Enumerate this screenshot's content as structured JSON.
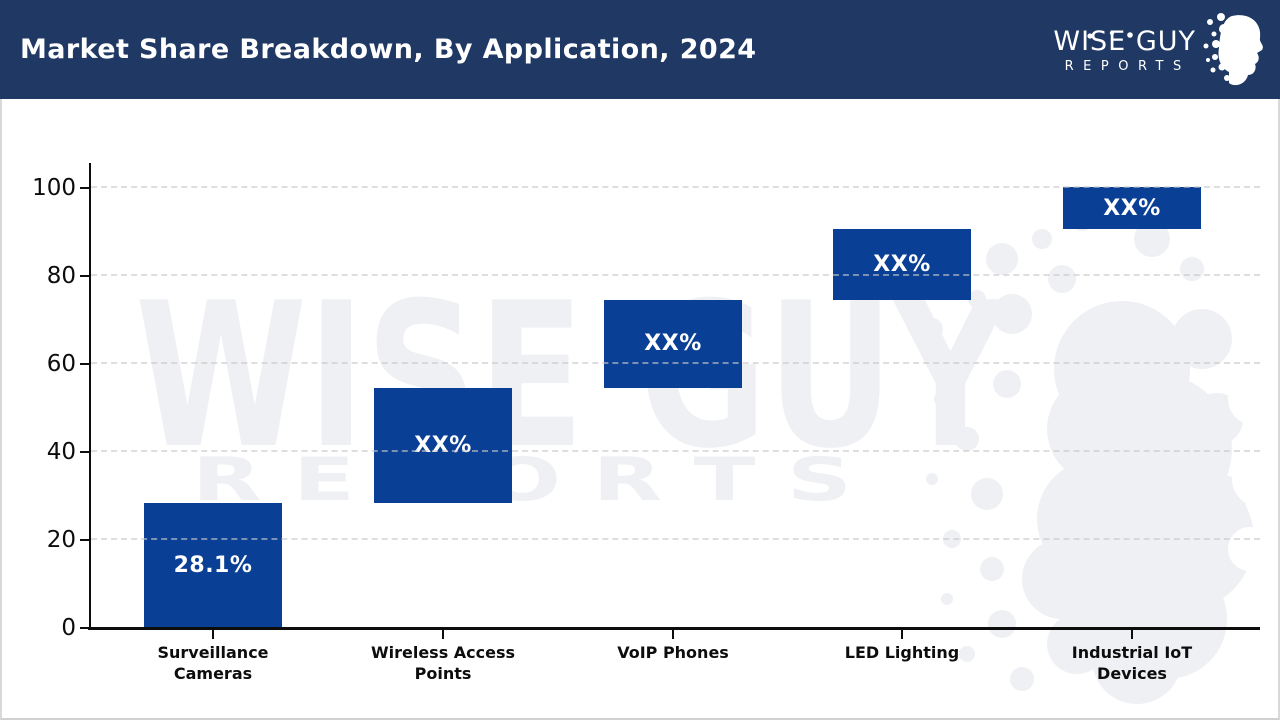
{
  "header": {
    "title": "Market Share Breakdown, By Application, 2024",
    "bg_color": "#1f3864",
    "logo": {
      "line1": "WISE GUY",
      "line2": "REPORTS"
    }
  },
  "watermark": {
    "line1": "WISE GUY",
    "line2": "R E P O R T S",
    "color": "#eff0f3"
  },
  "chart_data": {
    "type": "bar",
    "variant": "waterfall",
    "title": "Market Share Breakdown, By Application, 2024",
    "categories": [
      "Surveillance Cameras",
      "Wireless Access Points",
      "VoIP Phones",
      "LED Lighting",
      "Industrial IoT Devices"
    ],
    "category_label_lines": [
      [
        "Surveillance",
        "Cameras"
      ],
      [
        "Wireless Access",
        "Points"
      ],
      [
        "VoIP Phones"
      ],
      [
        "LED Lighting"
      ],
      [
        "Industrial IoT",
        "Devices"
      ]
    ],
    "segments": [
      {
        "category": "Surveillance Cameras",
        "start": 0,
        "end": 28.1,
        "label": "28.1%"
      },
      {
        "category": "Wireless Access Points",
        "start": 28.1,
        "end": 54.4,
        "label": "XX%"
      },
      {
        "category": "VoIP Phones",
        "start": 54.4,
        "end": 74.4,
        "label": "XX%"
      },
      {
        "category": "LED Lighting",
        "start": 74.4,
        "end": 90.4,
        "label": "XX%"
      },
      {
        "category": "Industrial IoT Devices",
        "start": 90.4,
        "end": 100,
        "label": "XX%"
      }
    ],
    "yticks": [
      0,
      20,
      40,
      60,
      80,
      100
    ],
    "ylim": [
      0,
      105
    ],
    "grid": "dashed-horizontal",
    "legend": "none",
    "bar_color": "#0a3f96",
    "bar_label_color": "#ffffff"
  }
}
